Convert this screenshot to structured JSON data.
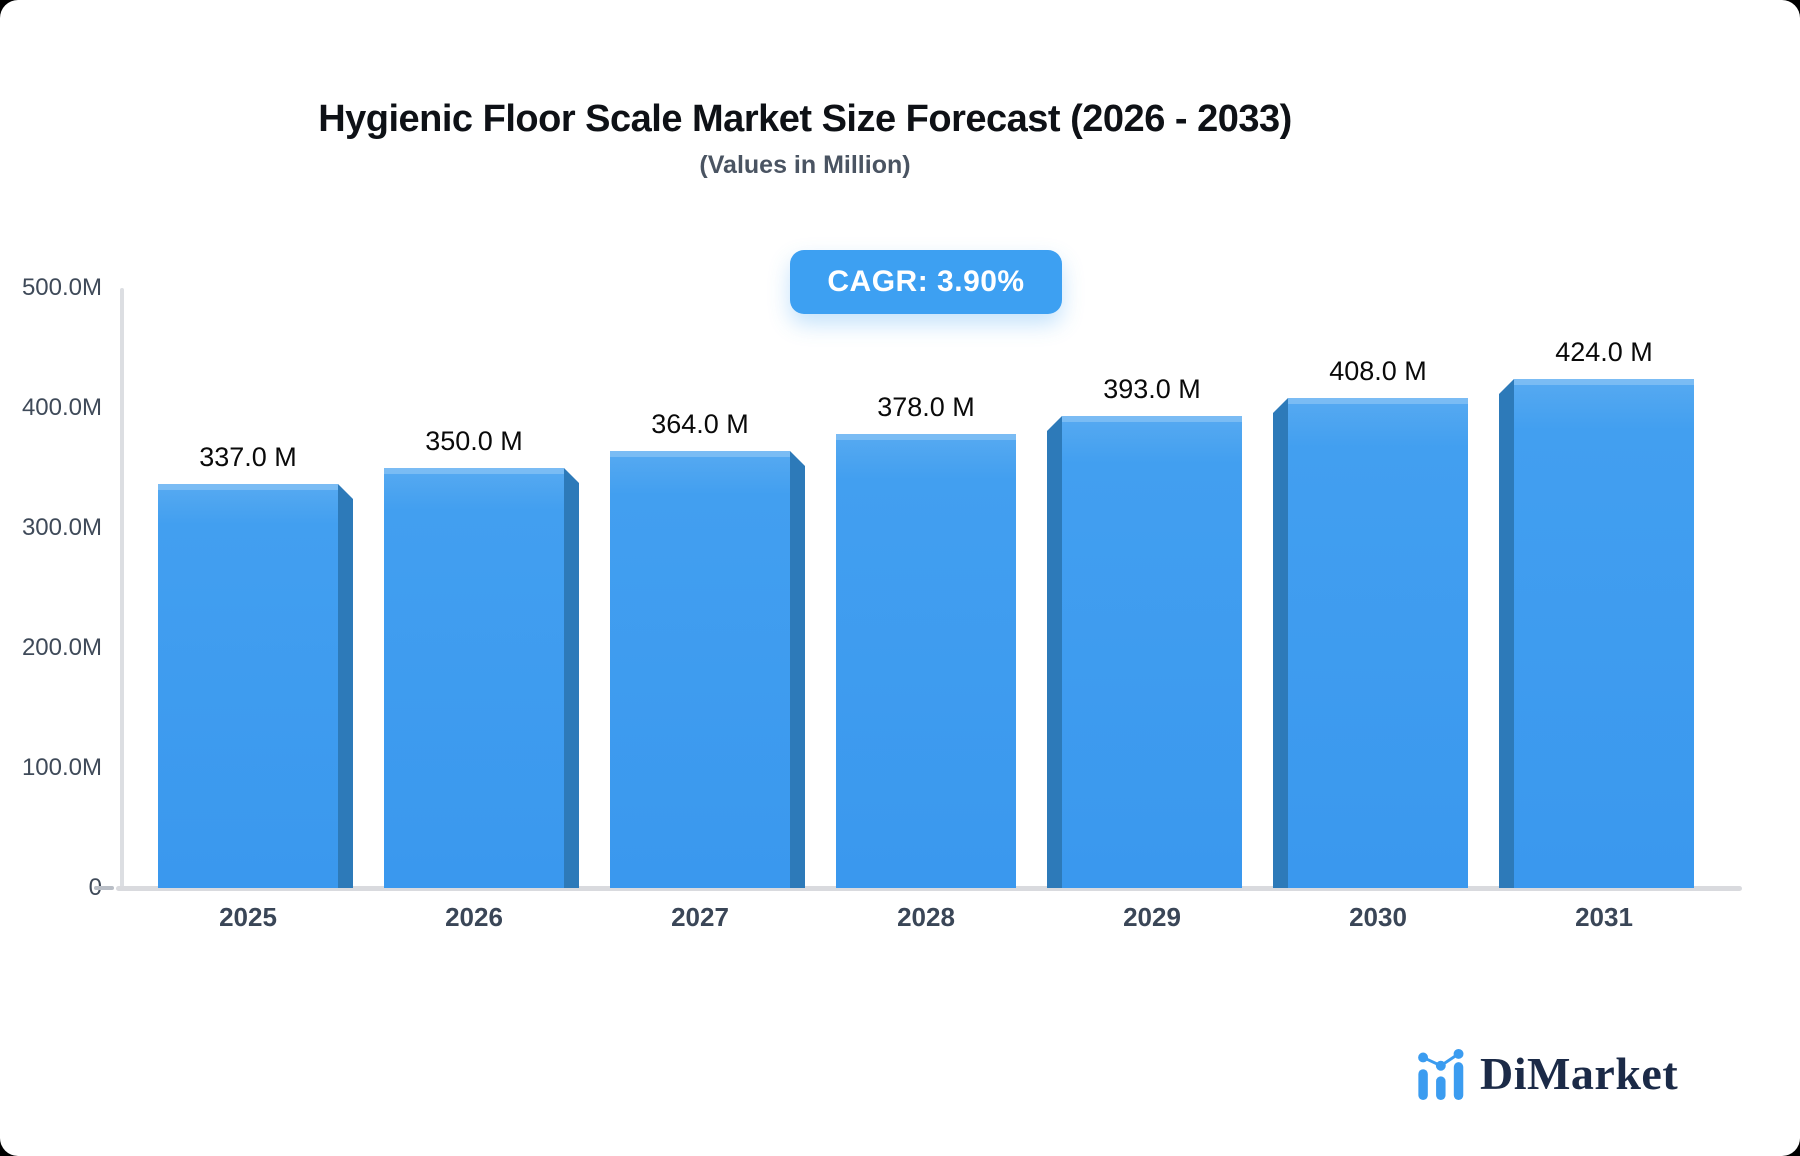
{
  "header": {
    "title": "Hygienic Floor Scale Market Size Forecast (2026 - 2033)",
    "subtitle": "(Values in Million)"
  },
  "badge": {
    "label": "CAGR: 3.90%",
    "background_color": "#3DA0F2",
    "text_color": "#FFFFFF"
  },
  "chart_data": {
    "type": "bar",
    "title": "Hygienic Floor Scale Market Size Forecast (2026 - 2033)",
    "subtitle": "(Values in Million)",
    "annotation": "CAGR: 3.90%",
    "categories": [
      "2025",
      "2026",
      "2027",
      "2028",
      "2029",
      "2030",
      "2031"
    ],
    "values": [
      337,
      350,
      364,
      378,
      393,
      408,
      424
    ],
    "value_labels": [
      "337.0 M",
      "350.0 M",
      "364.0 M",
      "378.0 M",
      "393.0 M",
      "408.0 M",
      "424.0 M"
    ],
    "ylim": [
      0,
      500
    ],
    "yticks": [
      {
        "label": "500.0M",
        "value": 500
      },
      {
        "label": "400.0M",
        "value": 400
      },
      {
        "label": "300.0M",
        "value": 300
      },
      {
        "label": "200.0M",
        "value": 200
      },
      {
        "label": "100.0M",
        "value": 100
      },
      {
        "label": "0",
        "value": 0
      }
    ],
    "grid": false,
    "legend": false,
    "bar_color": "#3E9EEF",
    "bar_side_color": "#2D7AB9",
    "axis_color": "#DCDEE2",
    "style_note": "pseudo-3d bars; side face on right for bars left of center, on left for bars right of center"
  },
  "logo": {
    "text": "DiMarket",
    "icon": "mini-bar-chart-trend-icon",
    "text_color": "#1B2A47",
    "accent_color": "#3B9CF0"
  }
}
